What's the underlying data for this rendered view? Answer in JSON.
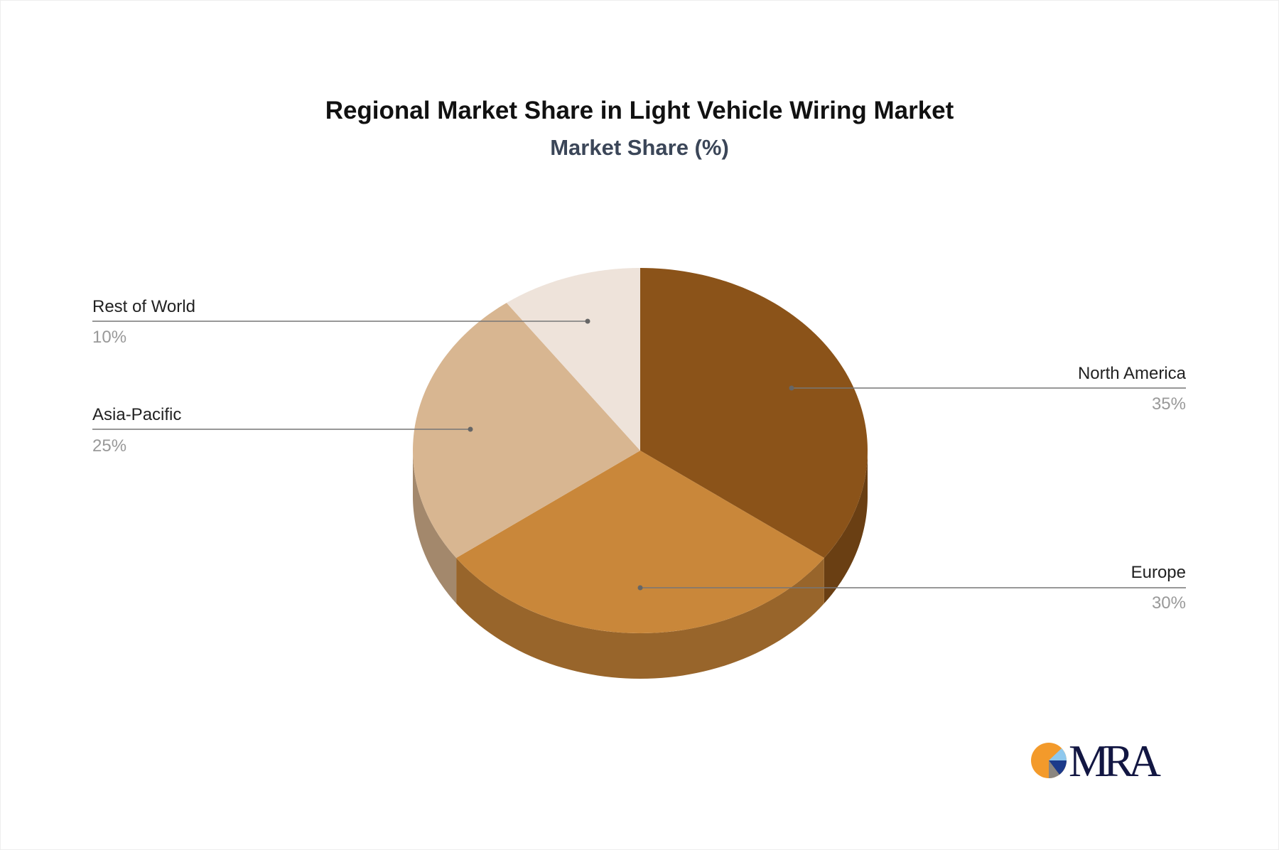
{
  "chart_data": {
    "type": "pie",
    "title": "Regional Market Share in Light Vehicle Wiring Market",
    "subtitle": "Market Share (%)",
    "style": "3d",
    "slices": [
      {
        "label": "North America",
        "value": 35,
        "display": "35%",
        "color": "#8B5319",
        "side": "#6A3F13"
      },
      {
        "label": "Europe",
        "value": 30,
        "display": "30%",
        "color": "#C9873A",
        "side": "#98652B"
      },
      {
        "label": "Asia-Pacific",
        "value": 25,
        "display": "25%",
        "color": "#D8B691",
        "side": "#A3886C"
      },
      {
        "label": "Rest of World",
        "value": 10,
        "display": "10%",
        "color": "#EEE3DA",
        "side": "#B8ADA4"
      }
    ]
  },
  "logo": {
    "text": "MRA"
  }
}
